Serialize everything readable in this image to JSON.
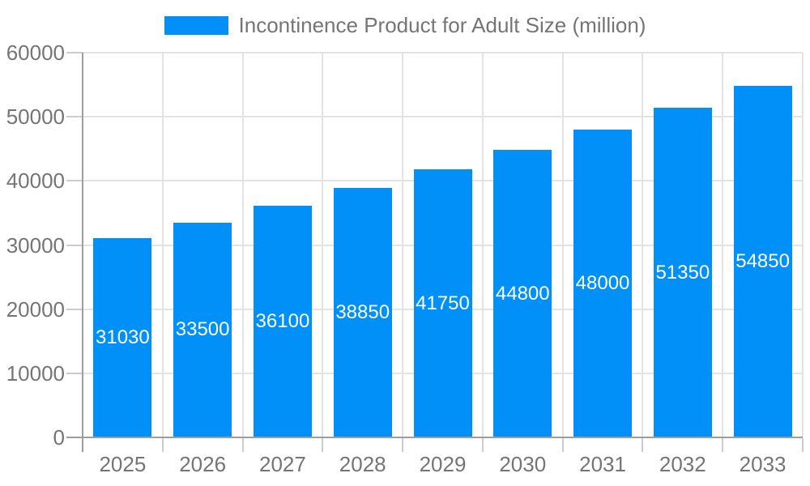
{
  "legend": {
    "label": "Incontinence Product for Adult Size (million)"
  },
  "chart_data": {
    "type": "bar",
    "title": "Incontinence Product for Adult Size (million)",
    "categories": [
      "2025",
      "2026",
      "2027",
      "2028",
      "2029",
      "2030",
      "2031",
      "2032",
      "2033"
    ],
    "values": [
      31030,
      33500,
      36100,
      38850,
      41750,
      44800,
      48000,
      51350,
      54850
    ],
    "value_labels": [
      "31030",
      "33500",
      "36100",
      "38850",
      "41750",
      "44800",
      "48000",
      "51350",
      "54850"
    ],
    "xlabel": "",
    "ylabel": "",
    "ylim": [
      0,
      60000
    ],
    "yticks": [
      0,
      10000,
      20000,
      30000,
      40000,
      50000,
      60000
    ],
    "ytick_labels": [
      "0",
      "10000",
      "20000",
      "30000",
      "40000",
      "50000",
      "60000"
    ],
    "grid": true,
    "legend_position": "top",
    "colors": {
      "bar": "#0090F8",
      "bar_value_text": "#ffffff",
      "axis_text": "#757575",
      "axis_line": "#9e9e9e",
      "gridline": "#e3e3e3",
      "tick": "#cccccc",
      "background": "#ffffff"
    }
  }
}
